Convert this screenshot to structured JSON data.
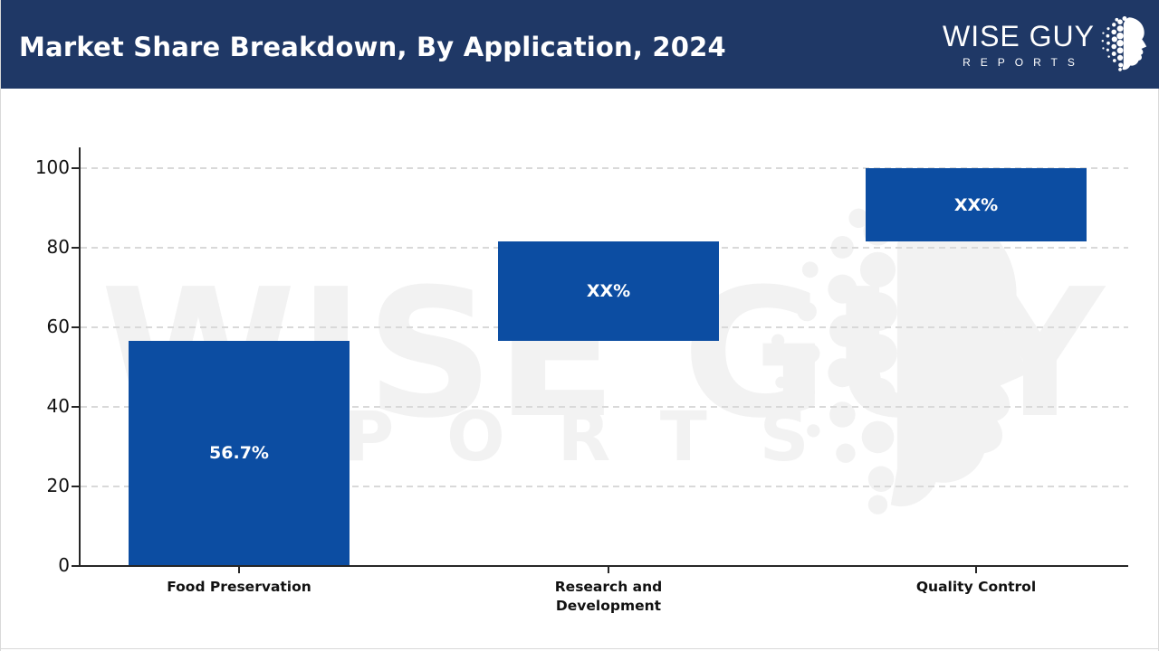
{
  "header": {
    "title": "Market Share Breakdown, By Application, 2024",
    "logo": {
      "wordmark": "WISE GUY",
      "subtext": "REPORTS"
    }
  },
  "watermark": {
    "wordmark": "WISE GUY",
    "subtext": "REPORTS"
  },
  "chart_data": {
    "type": "bar",
    "subtype": "floating_segment_bar",
    "title": "Market Share Breakdown, By Application, 2024",
    "categories": [
      "Food Preservation",
      "Research and\nDevelopment",
      "Quality Control"
    ],
    "segments": [
      {
        "category": "Food Preservation",
        "start": 0,
        "end": 56.7,
        "label": "56.7%"
      },
      {
        "category": "Research and\nDevelopment",
        "start": 56.7,
        "end": 81.5,
        "label": "XX%"
      },
      {
        "category": "Quality Control",
        "start": 81.5,
        "end": 100,
        "label": "XX%"
      }
    ],
    "ylim": [
      0,
      100
    ],
    "yticks": [
      0,
      20,
      40,
      60,
      80,
      100
    ],
    "xlabel": "",
    "ylabel": "",
    "grid": {
      "axis": "y",
      "style": "dashed"
    },
    "legend": null,
    "colors": {
      "header_bg": "#1f3866",
      "bar": "#0c4da2",
      "bar_label": "#ffffff",
      "grid": "#d9d9d9",
      "axis": "#262626",
      "watermark": "#f2f2f2"
    }
  }
}
